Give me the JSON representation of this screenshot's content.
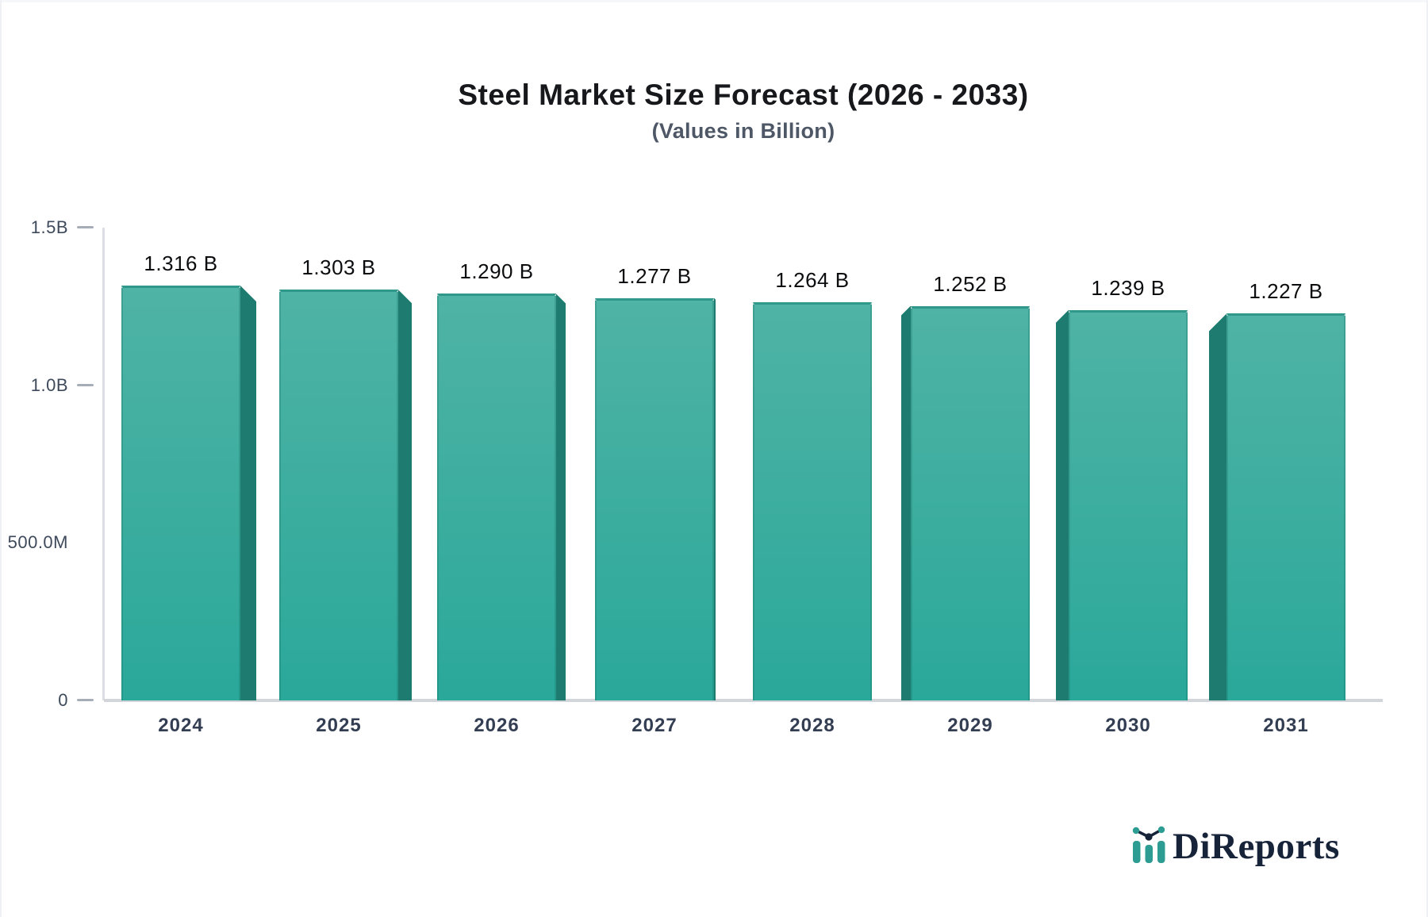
{
  "header": {
    "title": "Steel Market Size Forecast (2026 - 2033)",
    "subtitle": "(Values in Billion)"
  },
  "chart_data": {
    "type": "bar",
    "title": "Steel Market Size Forecast (2026 - 2033)",
    "subtitle": "(Values in Billion)",
    "unit": "Billion",
    "categories": [
      "2024",
      "2025",
      "2026",
      "2027",
      "2028",
      "2029",
      "2030",
      "2031"
    ],
    "series": [
      {
        "name": "Steel Market Size",
        "values": [
          1.316,
          1.303,
          1.29,
          1.277,
          1.264,
          1.252,
          1.239,
          1.227
        ]
      }
    ],
    "value_labels": [
      "1.316 B",
      "1.303 B",
      "1.290 B",
      "1.277 B",
      "1.264 B",
      "1.252 B",
      "1.239 B",
      "1.227 B"
    ],
    "ylim": [
      0,
      1.5
    ],
    "y_ticks": [
      {
        "label": "1.5B",
        "value": 1.5,
        "dash": true
      },
      {
        "label": "1.0B",
        "value": 1.0,
        "dash": true
      },
      {
        "label": "500.0M",
        "value": 0.5,
        "dash": false
      },
      {
        "label": "0",
        "value": 0.0,
        "dash": true
      }
    ],
    "grid": false,
    "legend": false,
    "colors": {
      "bar_top": "#4fb3a5",
      "bar_bottom": "#2aa89a",
      "bar_side": "#1e7b6f",
      "bar_top_edge": "#2f988b",
      "axis_line": "#dbdfe3",
      "baseline": "#d2d6db",
      "tick_dash": "#a6adb7",
      "y_label": "#3e4a5b",
      "x_label": "#333e52",
      "value_label": "#0c0d0f"
    }
  },
  "logo": {
    "text": "DiReports",
    "icon": "bar-line-chart-icon",
    "colors": {
      "navy": "#162339",
      "teal": "#2d9c92"
    }
  }
}
